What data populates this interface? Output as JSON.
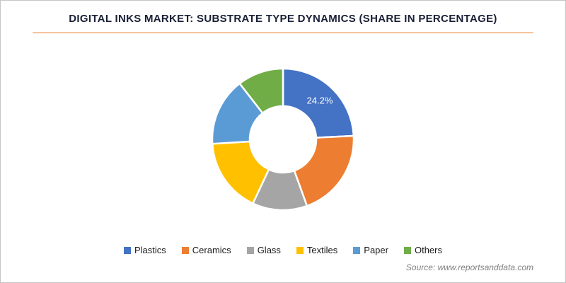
{
  "header": {
    "title": "DIGITAL INKS MARKET: SUBSTRATE TYPE DYNAMICS (SHARE IN PERCENTAGE)"
  },
  "source": {
    "text": "Source: www.reportsanddata.com"
  },
  "accent": {
    "divider_color": "#E87722",
    "title_color": "#1A2036",
    "border_color": "#C6C6C6",
    "data_label_color": "#FFFFFF"
  },
  "chart_data": {
    "type": "pie",
    "subtype": "donut",
    "title": "DIGITAL INKS MARKET: SUBSTRATE TYPE DYNAMICS (SHARE IN PERCENTAGE)",
    "categories": [
      "Plastics",
      "Ceramics",
      "Glass",
      "Textiles",
      "Paper",
      "Others"
    ],
    "values": [
      24.2,
      20.3,
      12.5,
      17.0,
      15.5,
      10.5
    ],
    "colors": [
      "#4472C4",
      "#ED7D31",
      "#A5A5A5",
      "#FFC000",
      "#5B9BD5",
      "#70AD47"
    ],
    "data_labels": [
      "24.2%",
      "",
      "",
      "",
      "",
      ""
    ],
    "legend_position": "bottom",
    "start_angle_deg": 0,
    "inner_radius_ratio": 0.47,
    "notes": "Only the Plastics slice shows an explicit data label (24.2%); other values estimated from arc angles."
  }
}
